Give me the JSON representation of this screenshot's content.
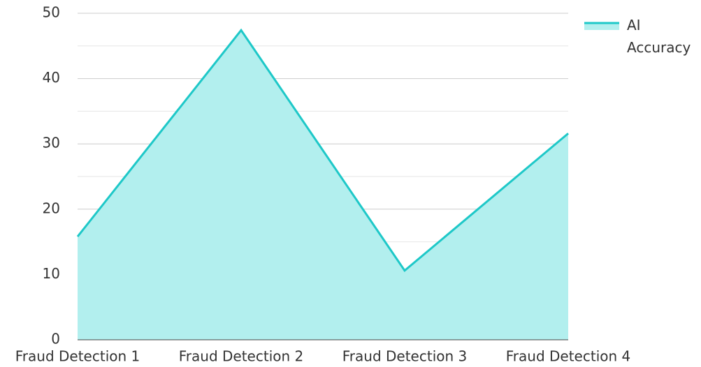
{
  "chart_data": {
    "type": "area",
    "categories": [
      "Fraud Detection 1",
      "Fraud Detection 2",
      "Fraud Detection 3",
      "Fraud Detection 4"
    ],
    "series": [
      {
        "name": "AI Accuracy",
        "color": "#1ec8c8",
        "fill": "#b2efee",
        "values": [
          15.8,
          47.4,
          10.6,
          31.6
        ]
      }
    ],
    "ylim": [
      0,
      50
    ],
    "yticks": [
      0,
      10,
      20,
      30,
      40,
      50
    ],
    "minor_yticks": [
      5,
      15,
      25,
      35,
      45
    ],
    "grid": true,
    "legend": "top-right"
  }
}
